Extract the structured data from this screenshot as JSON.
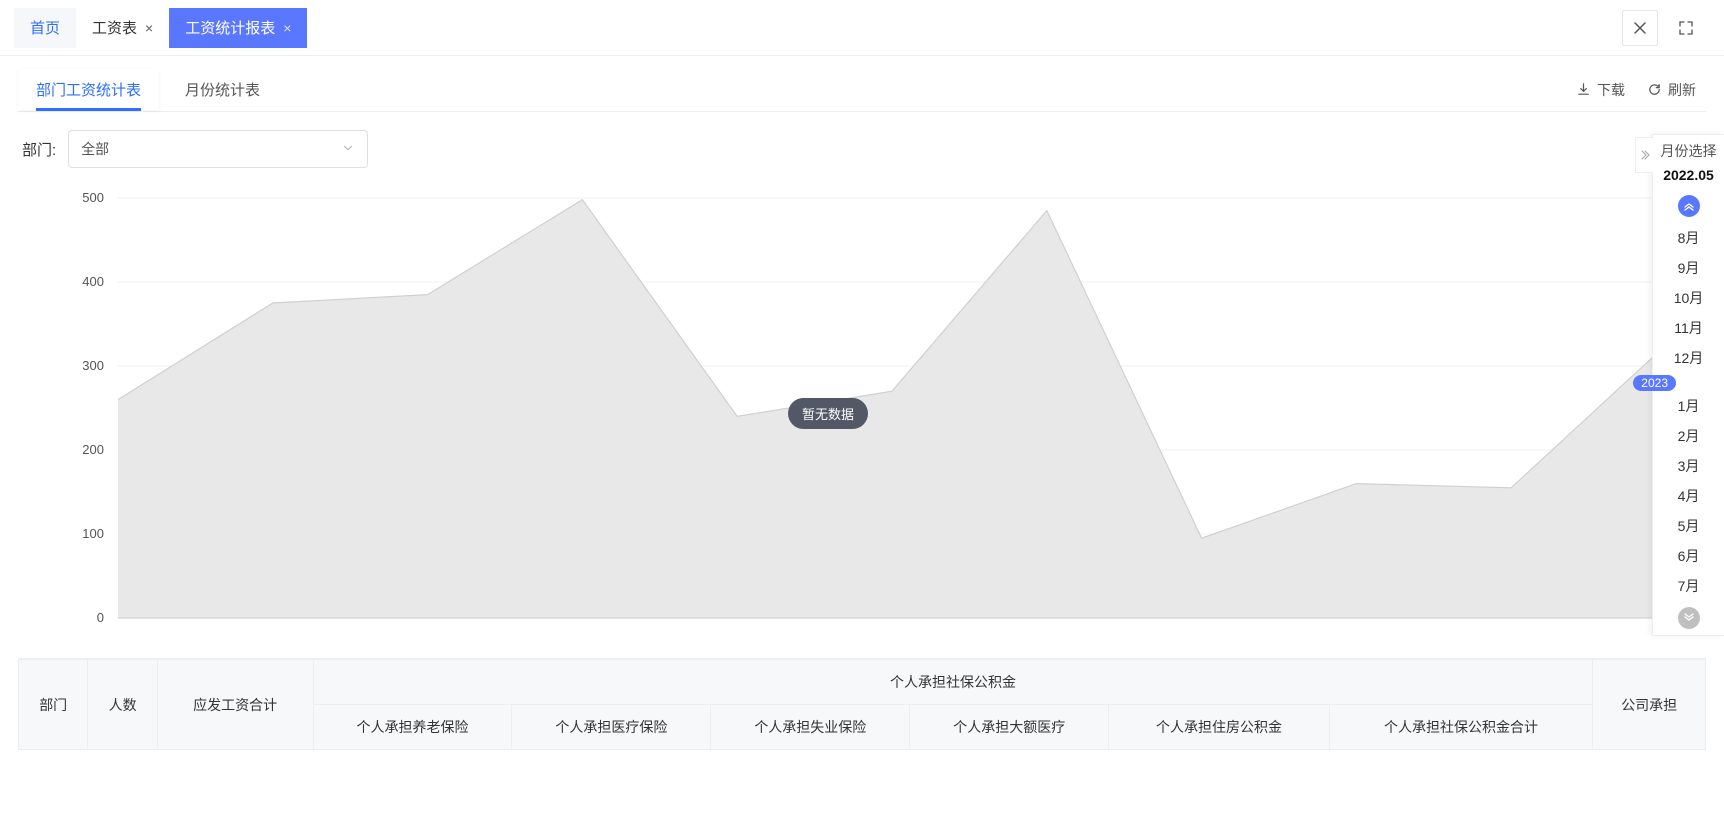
{
  "tabs": {
    "home": "首页",
    "items": [
      {
        "label": "工资表"
      },
      {
        "label": "工资统计报表"
      }
    ],
    "active_index": 1
  },
  "sub_tabs": {
    "items": [
      "部门工资统计表",
      "月份统计表"
    ],
    "active_index": 0
  },
  "tools": {
    "download": "下载",
    "refresh": "刷新"
  },
  "filter": {
    "label": "部门:",
    "selected": "全部"
  },
  "chart": {
    "type": "area",
    "ylim": [
      0,
      500
    ],
    "yticks": [
      0,
      100,
      200,
      300,
      400,
      500
    ],
    "y_axis_fontsize": 13,
    "values": [
      260,
      375,
      385,
      498,
      240,
      270,
      485,
      95,
      160,
      155,
      325
    ],
    "fill_color": "#e8e8e8",
    "stroke_color": "#d0d0d0",
    "background_color": "#ffffff",
    "grid_color": "#f0f0f0",
    "tooltip_text": "暂无数据",
    "tooltip_bg": "#525866",
    "tooltip_text_color": "#ffffff"
  },
  "table": {
    "group_header": "个人承担社保公积金",
    "cols_fixed": [
      "部门",
      "人数",
      "应发工资合计"
    ],
    "cols_group": [
      "个人承担养老保险",
      "个人承担医疗保险",
      "个人承担失业保险",
      "个人承担大额医疗",
      "个人承担住房公积金",
      "个人承担社保公积金合计"
    ],
    "col_trailing": "公司承担"
  },
  "month_panel": {
    "title": "月份选择",
    "current": "2022.05",
    "items": [
      "8月",
      "9月",
      "10月",
      "11月",
      "12月"
    ],
    "year_badge": "2023",
    "items2": [
      "1月",
      "2月",
      "3月",
      "4月",
      "5月",
      "6月",
      "7月"
    ]
  },
  "colors": {
    "accent": "#5a78ff",
    "link": "#2c6eff"
  }
}
